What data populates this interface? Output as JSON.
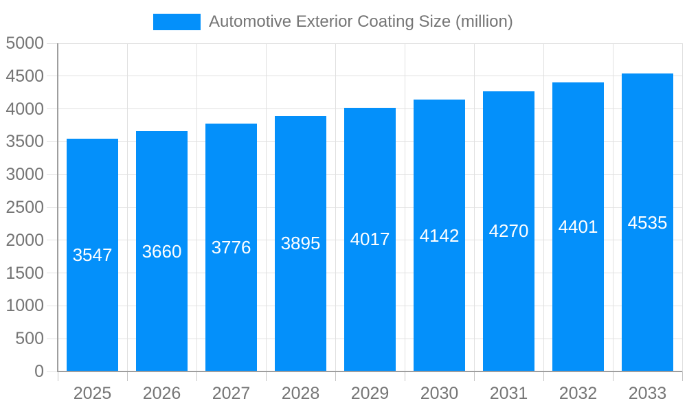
{
  "legend": {
    "label": "Automotive Exterior Coating Size (million)"
  },
  "chart_data": {
    "type": "bar",
    "title": "Automotive Exterior Coating Size (million)",
    "categories": [
      "2025",
      "2026",
      "2027",
      "2028",
      "2029",
      "2030",
      "2031",
      "2032",
      "2033"
    ],
    "values": [
      3547,
      3660,
      3776,
      3895,
      4017,
      4142,
      4270,
      4401,
      4535
    ],
    "xlabel": "",
    "ylabel": "",
    "ylim": [
      0,
      5000
    ],
    "ytick_step": 500,
    "grid": true,
    "legend_position": "top",
    "value_labels": "inside-middle"
  },
  "colors": {
    "bar": "#0490fa",
    "value_text": "#ffffff",
    "axis_text": "#757575",
    "axis_line": "#9e9e9e",
    "grid_line": "#e0e0e0",
    "tick": "#c4c4c4",
    "background": "#ffffff"
  }
}
